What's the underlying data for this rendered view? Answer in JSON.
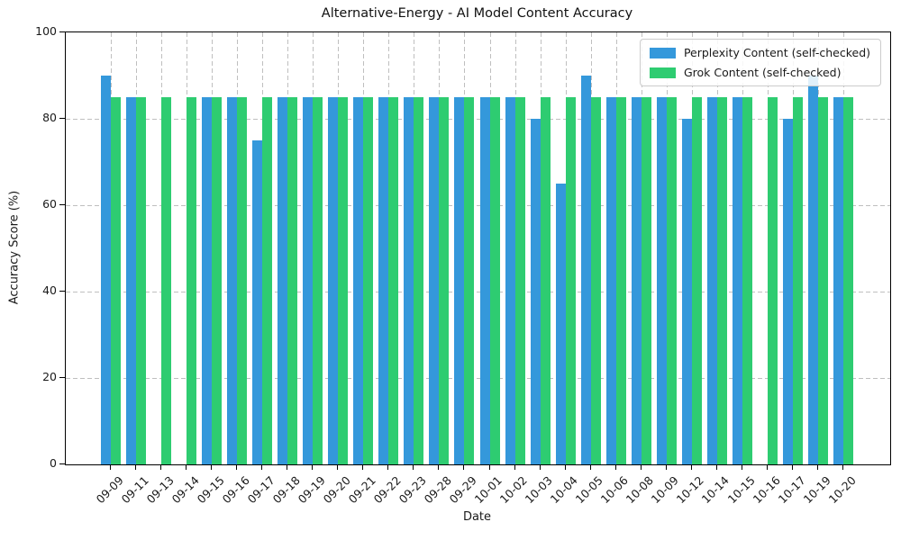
{
  "chart_data": {
    "type": "bar",
    "title": "Alternative-Energy - AI Model Content Accuracy",
    "xlabel": "Date",
    "ylabel": "Accuracy Score (%)",
    "ylim": [
      0,
      100
    ],
    "yticks": [
      0,
      20,
      40,
      60,
      80,
      100
    ],
    "grid": true,
    "grid_style": "dashed",
    "legend_position": "upper-right",
    "categories": [
      "09-09",
      "09-11",
      "09-13",
      "09-14",
      "09-15",
      "09-16",
      "09-17",
      "09-18",
      "09-19",
      "09-20",
      "09-21",
      "09-22",
      "09-23",
      "09-28",
      "09-29",
      "10-01",
      "10-02",
      "10-03",
      "10-04",
      "10-05",
      "10-06",
      "10-08",
      "10-09",
      "10-12",
      "10-14",
      "10-15",
      "10-16",
      "10-17",
      "10-19",
      "10-20"
    ],
    "series": [
      {
        "name": "Perplexity Content (self-checked)",
        "color": "#3498db",
        "values": [
          90,
          85,
          0,
          0,
          85,
          85,
          75,
          85,
          85,
          85,
          85,
          85,
          85,
          85,
          85,
          85,
          85,
          80,
          65,
          90,
          85,
          85,
          85,
          80,
          85,
          85,
          0,
          80,
          90,
          85
        ]
      },
      {
        "name": "Grok Content (self-checked)",
        "color": "#2ecc71",
        "values": [
          85,
          85,
          85,
          85,
          85,
          85,
          85,
          85,
          85,
          85,
          85,
          85,
          85,
          85,
          85,
          85,
          85,
          85,
          85,
          85,
          85,
          85,
          85,
          85,
          85,
          85,
          85,
          85,
          85,
          85
        ]
      }
    ]
  }
}
